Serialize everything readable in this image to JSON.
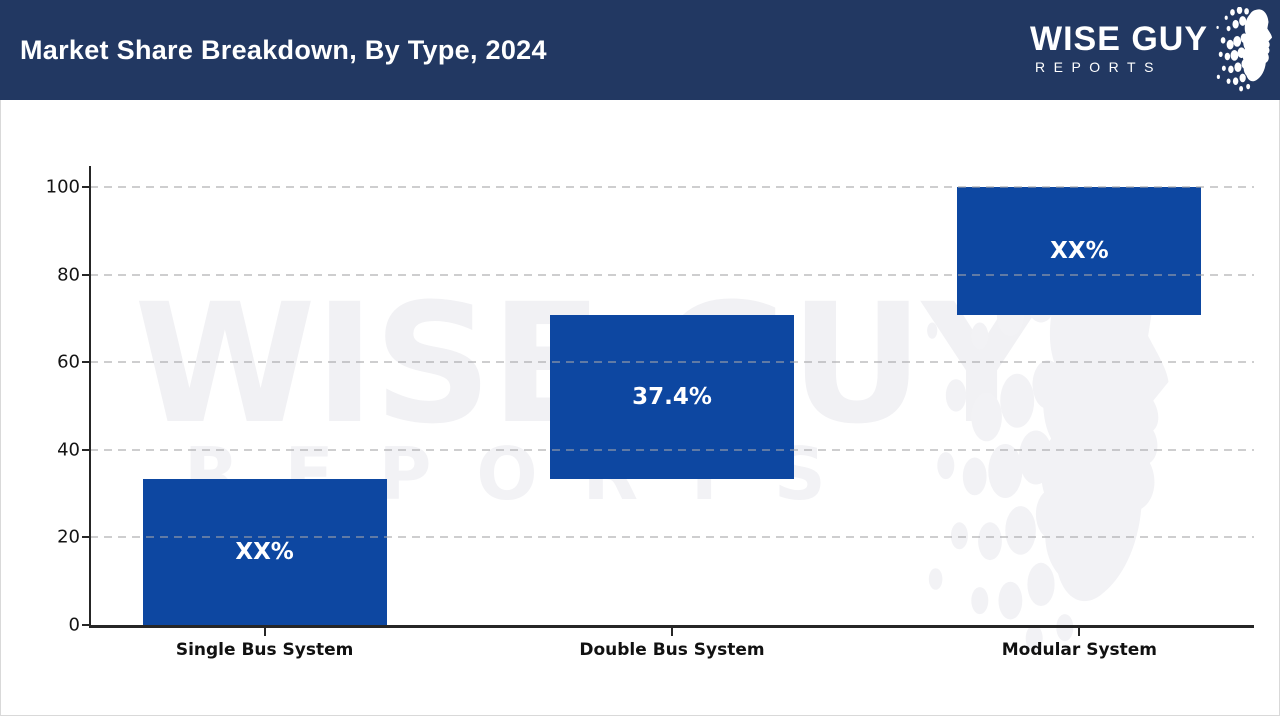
{
  "header": {
    "title": "Market Share Breakdown, By Type, 2024",
    "background_color": "#223862",
    "logo": {
      "line1": "WISE GUY",
      "line2": "REPORTS"
    }
  },
  "watermark": {
    "line1": "WISE GUY",
    "line2": "REPORTS"
  },
  "chart_data": {
    "type": "bar",
    "subtype": "floating-waterfall-columns",
    "title": "Market Share Breakdown, By Type, 2024",
    "categories": [
      "Single Bus System",
      "Double Bus System",
      "Modular System"
    ],
    "segments": [
      {
        "category": "Single Bus System",
        "start": 0,
        "end": 33.3,
        "label": "XX%"
      },
      {
        "category": "Double Bus System",
        "start": 33.3,
        "end": 70.7,
        "label": "37.4%"
      },
      {
        "category": "Modular System",
        "start": 70.7,
        "end": 100,
        "label": "XX%"
      }
    ],
    "ylim": [
      0,
      100
    ],
    "yticks": [
      0,
      20,
      40,
      60,
      80,
      100
    ],
    "ytick_labels": [
      "0",
      "20",
      "40",
      "60",
      "80",
      "100"
    ],
    "grid": "horizontal-dashed",
    "legend": false,
    "bar_color": "#0d47a1",
    "bar_label_color": "#ffffff",
    "axis_color": "#262626"
  }
}
